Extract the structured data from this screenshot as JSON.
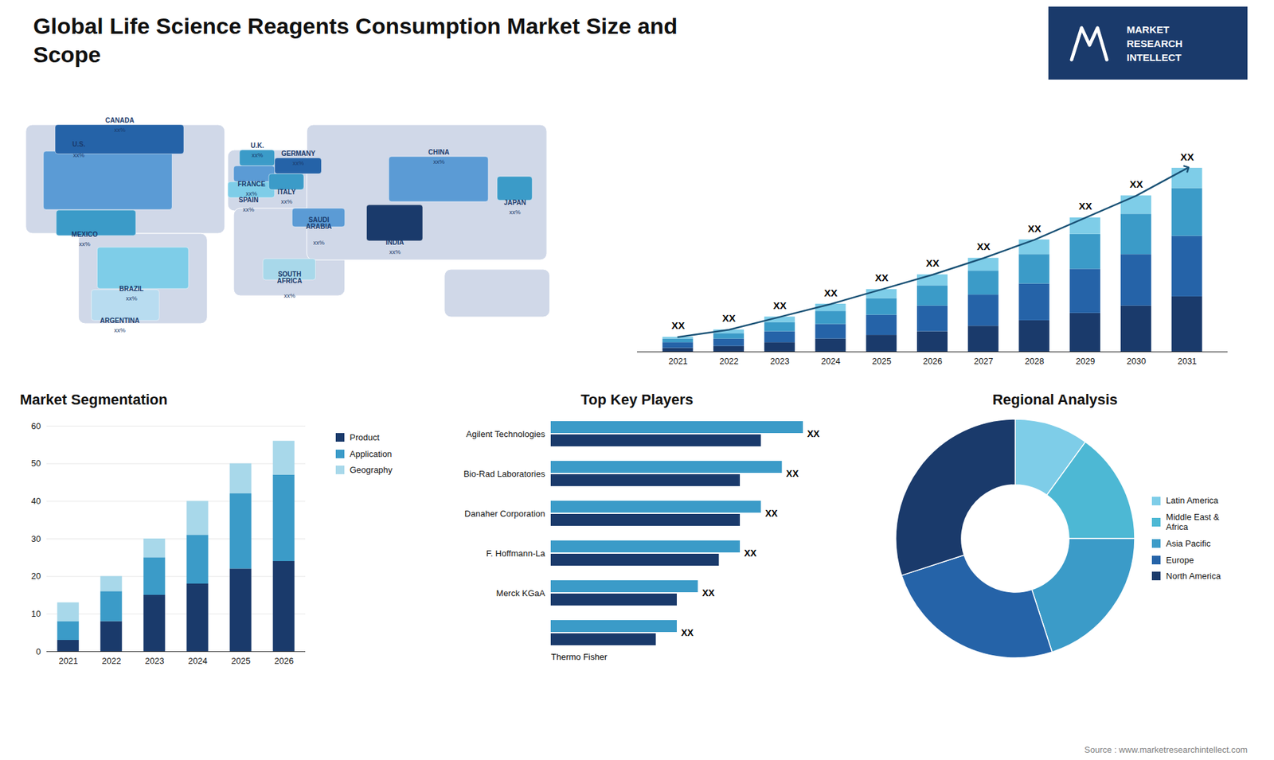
{
  "title": "Global Life Science Reagents Consumption Market Size and\nScope",
  "annotations": [
    "MARKET\nRESEARCH\nINTELLECT",
    "Source : www.marketresearchintellect.com"
  ],
  "chart_data": [
    {
      "type": "map",
      "categories": [
        "U.S.",
        "CANADA",
        "MEXICO",
        "BRAZIL",
        "ARGENTINA",
        "U.K.",
        "FRANCE",
        "SPAIN",
        "GERMANY",
        "ITALY",
        "SAUDI\nARABIA",
        "SOUTH\nAFRICA",
        "CHINA",
        "INDIA",
        "JAPAN"
      ],
      "colors": [
        "#5b9bd5",
        "#2563a8",
        "#3b9bc8",
        "#7ecde8",
        "#b8dcf0",
        "#3b9bc8",
        "#5b9bd5",
        "#7ecde8",
        "#2563a8",
        "#3b9bc8",
        "#5b9bd5",
        "#a8d8ea",
        "#5b9bd5",
        "#1a3a6b",
        "#3b9bc8"
      ],
      "annotations": [
        "xx%",
        "xx%",
        "xx%",
        "xx%",
        "xx%",
        "xx%",
        "xx%",
        "xx%",
        "xx%",
        "xx%",
        "xx%",
        "xx%",
        "xx%",
        "xx%",
        "xx%"
      ]
    },
    {
      "type": "bar",
      "stacked": true,
      "x": [
        2021,
        2022,
        2023,
        2024,
        2025,
        2026,
        2027,
        2028,
        2029,
        2030,
        2031
      ],
      "xlim": [
        2020.2,
        2031.8
      ],
      "xticks": [
        2021,
        2022,
        2023,
        2024,
        2025,
        2026,
        2027,
        2028,
        2029,
        2030,
        2031
      ],
      "ylim": [
        0,
        130
      ],
      "tick_labels": "x",
      "grid": false,
      "series": [
        {
          "color": "#1a3a6b",
          "values": [
            2,
            3,
            5,
            7,
            9,
            11,
            14,
            17,
            21,
            25,
            30
          ]
        },
        {
          "color": "#2563a8",
          "values": [
            3,
            4,
            6,
            8,
            11,
            14,
            17,
            20,
            24,
            28,
            33
          ]
        },
        {
          "color": "#3b9bc8",
          "values": [
            2,
            3,
            5,
            7,
            9,
            11,
            13,
            16,
            19,
            22,
            26
          ]
        },
        {
          "color": "#7ecde8",
          "values": [
            1,
            2,
            3,
            4,
            5,
            6,
            7,
            8,
            9,
            10,
            11
          ]
        },
        {
          "type": "line",
          "color": "#1a5276",
          "marker": "arrow",
          "values": [
            8,
            12,
            19,
            26,
            34,
            42,
            51,
            61,
            73,
            85,
            100
          ],
          "value_labels": [
            "XX",
            "XX",
            "XX",
            "XX",
            "XX",
            "XX",
            "XX",
            "XX",
            "XX",
            "XX",
            "XX"
          ]
        }
      ]
    },
    {
      "type": "bar",
      "stacked": true,
      "title": "Market Segmentation",
      "x": [
        2021,
        2022,
        2023,
        2024,
        2025,
        2026
      ],
      "xlim": [
        2020.5,
        2026.5
      ],
      "xticks": [
        2021,
        2022,
        2023,
        2024,
        2025,
        2026
      ],
      "ylim": [
        0,
        60
      ],
      "yticks": [
        0,
        10,
        20,
        30,
        40,
        50,
        60
      ],
      "grid": true,
      "legend": "right",
      "series": [
        {
          "name": "Product",
          "color": "#1a3a6b",
          "values": [
            3,
            8,
            15,
            18,
            22,
            24
          ]
        },
        {
          "name": "Application",
          "color": "#3b9bc8",
          "values": [
            5,
            8,
            10,
            13,
            20,
            23
          ]
        },
        {
          "name": "Geography",
          "color": "#a8d8ea",
          "values": [
            5,
            4,
            5,
            9,
            8,
            9
          ]
        }
      ]
    },
    {
      "type": "bar",
      "orientation": "horizontal",
      "title": "Top Key Players",
      "categories": [
        "Agilent Technologies",
        "Bio-Rad Laboratories",
        "Danaher Corporation",
        "F. Hoffmann-La",
        "Merck KGaA",
        null
      ],
      "tick_labels": "y",
      "annotations": [
        "Thermo Fisher"
      ],
      "series": [
        {
          "color": "#3b9bc8",
          "values": [
            12,
            11,
            10,
            9,
            7,
            6
          ],
          "value_labels": [
            "XX",
            "XX",
            "XX",
            "XX",
            "XX",
            "XX"
          ]
        },
        {
          "color": "#1a3a6b",
          "values": [
            10,
            9,
            9,
            8,
            6,
            5
          ]
        }
      ]
    },
    {
      "type": "pie",
      "title": "Regional Analysis",
      "categories": [
        "Latin America",
        "Middle East &\nAfrica",
        "Asia Pacific",
        "Europe",
        "North America"
      ],
      "values": [
        10,
        15,
        20,
        25,
        30
      ],
      "colors": [
        "#7ecde8",
        "#4db8d4",
        "#3b9bc8",
        "#2563a8",
        "#1a3a6b"
      ],
      "legend": "right"
    }
  ]
}
